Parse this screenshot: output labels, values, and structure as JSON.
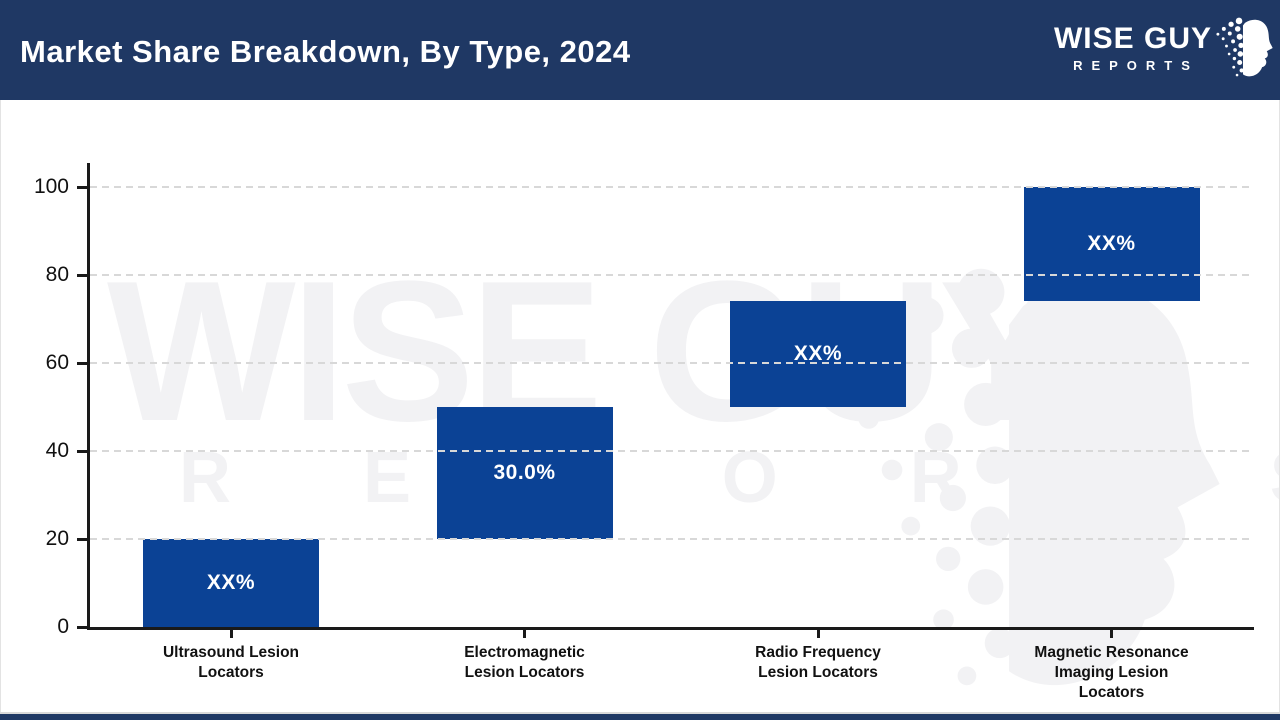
{
  "header": {
    "title": "Market Share Breakdown, By Type, 2024",
    "logo": {
      "line1": "WISE GUY",
      "line2": "REPORTS"
    }
  },
  "watermark": {
    "line1": "WISE GUY",
    "line2": "R E P O R T S"
  },
  "colors": {
    "header_bg": "#1f3864",
    "bar": "#0b4295",
    "watermark": "#f2f2f4",
    "axis": "#1a1a1a",
    "grid": "#d8d8d8"
  },
  "chart_data": {
    "type": "bar",
    "subtype": "waterfall",
    "title": "Market Share Breakdown, By Type, 2024",
    "categories": [
      "Ultrasound Lesion Locators",
      "Electromagnetic Lesion Locators",
      "Radio Frequency Lesion Locators",
      "Magnetic Resonance Imaging Lesion Locators"
    ],
    "category_lines": [
      [
        "Ultrasound Lesion",
        "Locators"
      ],
      [
        "Electromagnetic",
        "Lesion Locators"
      ],
      [
        "Radio Frequency",
        "Lesion Locators"
      ],
      [
        "Magnetic Resonance",
        "Imaging Lesion",
        "Locators"
      ]
    ],
    "segments": [
      {
        "category": "Ultrasound Lesion Locators",
        "start": 0,
        "end": 20,
        "label": "XX%"
      },
      {
        "category": "Electromagnetic Lesion Locators",
        "start": 20,
        "end": 50,
        "label": "30.0%"
      },
      {
        "category": "Radio Frequency Lesion Locators",
        "start": 50,
        "end": 74,
        "label": "XX%"
      },
      {
        "category": "Magnetic Resonance Imaging Lesion Locators",
        "start": 74,
        "end": 100,
        "label": "XX%"
      }
    ],
    "y_ticks": [
      0,
      20,
      40,
      60,
      80,
      100
    ],
    "ylim": [
      0,
      105
    ],
    "xlabel": "",
    "ylabel": "",
    "grid": true,
    "gridline_style": "dashed",
    "legend": "none",
    "bar_color": "#0b4295",
    "bar_label_color": "#ffffff"
  }
}
